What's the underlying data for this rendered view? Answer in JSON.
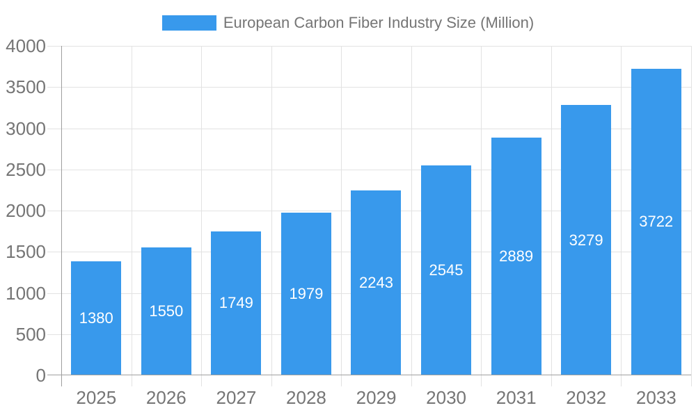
{
  "legend": {
    "label": "European Carbon Fiber Industry Size (Million)"
  },
  "colors": {
    "bar": "#3899EC",
    "axis_label": "#757575",
    "bar_label": "#FFFFFF",
    "gridline": "#E2E2E2",
    "axis_line": "#9E9E9E",
    "background": "#FFFFFF"
  },
  "chart_data": {
    "type": "bar",
    "title": "European Carbon Fiber Industry Size (Million)",
    "categories": [
      "2025",
      "2026",
      "2027",
      "2028",
      "2029",
      "2030",
      "2031",
      "2032",
      "2033"
    ],
    "values": [
      1380,
      1550,
      1749,
      1979,
      2243,
      2545,
      2889,
      3279,
      3722
    ],
    "xlabel": "",
    "ylabel": "",
    "ylim": [
      0,
      4000
    ],
    "ytick_step": 500,
    "grid": true,
    "legend_position": "top-center",
    "bar_value_labels": "inside-center"
  }
}
